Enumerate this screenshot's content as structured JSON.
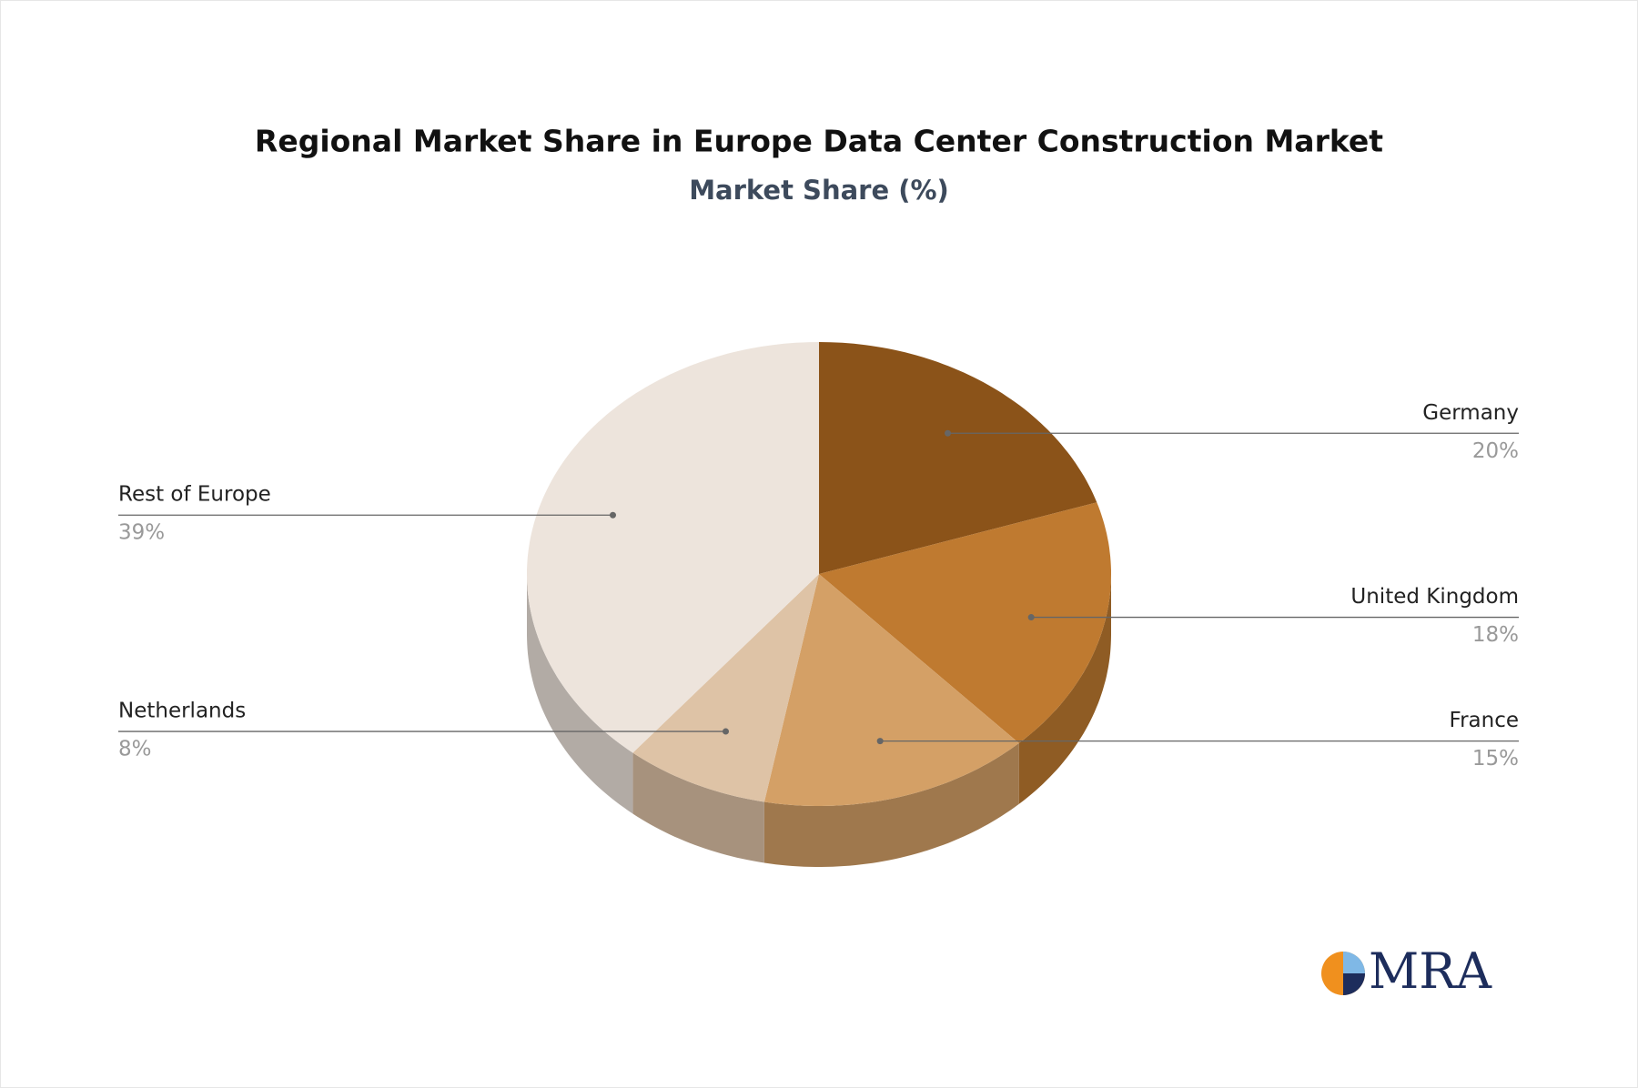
{
  "chart_data": {
    "type": "pie3d",
    "title": "Regional Market Share in Europe Data Center Construction Market",
    "subtitle": "Market Share (%)",
    "categories": [
      "Germany",
      "United Kingdom",
      "France",
      "Netherlands",
      "Rest of Europe"
    ],
    "values": [
      20,
      18,
      15,
      8,
      39
    ],
    "value_labels": [
      "20%",
      "18%",
      "15%",
      "8%",
      "39%"
    ],
    "colors": [
      "#8b5319",
      "#bf7a30",
      "#d4a066",
      "#dec3a6",
      "#ede4dc"
    ]
  },
  "logo": "MRA"
}
